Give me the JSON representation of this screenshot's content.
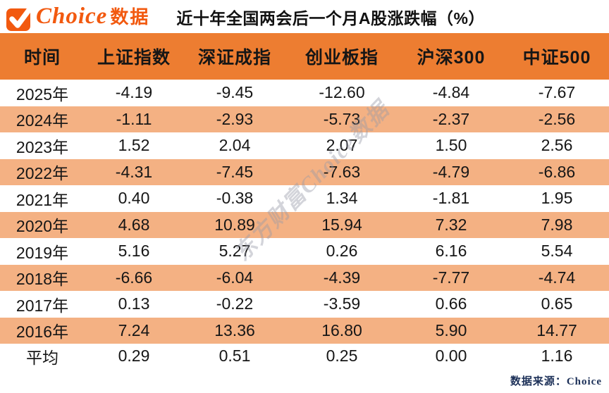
{
  "logo": {
    "brand": "Choice",
    "suffix": "数据"
  },
  "title": "近十年全国两会后一个月A股涨跌幅（%）",
  "watermark": "东方财富Choice数据",
  "footer": {
    "source": "数据来源：Choice"
  },
  "colors": {
    "header_bg": "#ED7D31",
    "row_alt_bg": "#F4B183",
    "up_red": "#D7261E",
    "down_green": "#29B065",
    "logo_orange": "#F2590F",
    "source_navy": "#1C3058"
  },
  "chart_data": {
    "type": "table",
    "title": "近十年全国两会后一个月A股涨跌幅（%）",
    "columns": [
      "时间",
      "上证指数",
      "深证成指",
      "创业板指",
      "沪深300",
      "中证500"
    ],
    "rows": [
      {
        "label": "2025年",
        "values": [
          "-4.19",
          "-9.45",
          "-12.60",
          "-4.84",
          "-7.67"
        ],
        "trends": [
          "down",
          "down",
          "down",
          "down",
          "down"
        ]
      },
      {
        "label": "2024年",
        "values": [
          "-1.11",
          "-2.93",
          "-5.73",
          "-2.37",
          "-2.56"
        ],
        "trends": [
          "down",
          "down",
          "down",
          "down",
          "down"
        ]
      },
      {
        "label": "2023年",
        "values": [
          "1.52",
          "2.04",
          "2.07",
          "1.50",
          "2.56"
        ],
        "trends": [
          "up",
          "up",
          "up",
          "up",
          "up"
        ]
      },
      {
        "label": "2022年",
        "values": [
          "-4.31",
          "-7.45",
          "-7.63",
          "-4.79",
          "-6.86"
        ],
        "trends": [
          "down",
          "down",
          "down",
          "down",
          "down"
        ]
      },
      {
        "label": "2021年",
        "values": [
          "0.40",
          "-0.38",
          "1.34",
          "-1.81",
          "1.95"
        ],
        "trends": [
          "up",
          "down",
          "up",
          "down",
          "up"
        ]
      },
      {
        "label": "2020年",
        "values": [
          "4.68",
          "10.89",
          "15.94",
          "7.32",
          "7.98"
        ],
        "trends": [
          "up",
          "up",
          "up",
          "up",
          "up"
        ]
      },
      {
        "label": "2019年",
        "values": [
          "5.16",
          "5.27",
          "0.26",
          "6.16",
          "5.54"
        ],
        "trends": [
          "up",
          "up",
          "up",
          "up",
          "up"
        ]
      },
      {
        "label": "2018年",
        "values": [
          "-6.66",
          "-6.04",
          "-4.39",
          "-7.77",
          "-4.74"
        ],
        "trends": [
          "down",
          "down",
          "down",
          "down",
          "down"
        ]
      },
      {
        "label": "2017年",
        "values": [
          "0.13",
          "-0.22",
          "-3.59",
          "0.66",
          "0.65"
        ],
        "trends": [
          "up",
          "down",
          "down",
          "up",
          "up"
        ]
      },
      {
        "label": "2016年",
        "values": [
          "7.24",
          "13.36",
          "16.80",
          "5.90",
          "14.77"
        ],
        "trends": [
          "up",
          "up",
          "up",
          "up",
          "up"
        ]
      },
      {
        "label": "平均",
        "values": [
          "0.29",
          "0.51",
          "0.25",
          "0.00",
          "1.16"
        ],
        "trends": [
          "up",
          "up",
          "up",
          "down",
          "up"
        ]
      }
    ],
    "color_coding": {
      "up": "red (positive)",
      "down": "green (negative/zero)"
    },
    "layout_hints": {
      "alternating_rows": "white / light-orange",
      "header": "orange band, black bold text"
    }
  }
}
